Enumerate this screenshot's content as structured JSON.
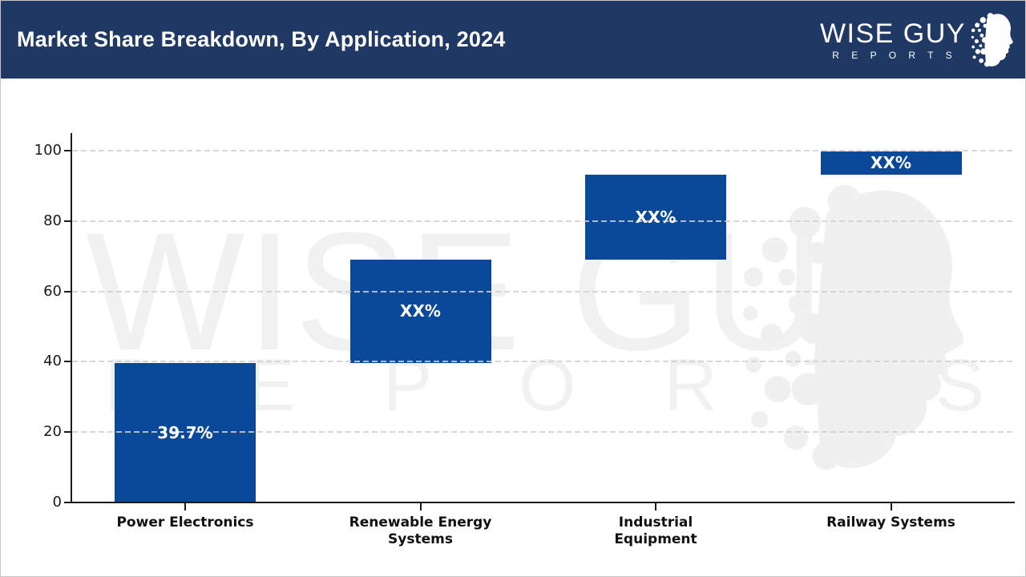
{
  "header": {
    "title": "Market Share Breakdown, By Application, 2024",
    "bg_color": "#1f3864",
    "logo": {
      "wordmark": "WISE GUY",
      "subtext": "R E P O R T S"
    }
  },
  "watermark": {
    "line1": "WISE GUY",
    "line2": "R E P O R T S"
  },
  "chart_data": {
    "type": "bar",
    "subtype": "floating-waterfall",
    "title": "Market Share Breakdown, By Application, 2024",
    "categories": [
      "Power Electronics",
      "Renewable Energy\nSystems",
      "Industrial\nEquipment",
      "Railway Systems"
    ],
    "segments": [
      {
        "category": "Power Electronics",
        "start": 0,
        "end": 39.7,
        "label": "39.7%"
      },
      {
        "category": "Renewable Energy Systems",
        "start": 39.7,
        "end": 69.0,
        "label": "XX%"
      },
      {
        "category": "Industrial Equipment",
        "start": 69.0,
        "end": 93.2,
        "label": "XX%"
      },
      {
        "category": "Railway Systems",
        "start": 93.2,
        "end": 99.8,
        "label": "XX%"
      }
    ],
    "ylim": [
      0,
      100
    ],
    "yticks": [
      0,
      20,
      40,
      60,
      80,
      100
    ],
    "xlabel": "",
    "ylabel": "",
    "grid": "horizontal-dashed",
    "legend": "none",
    "bar_color": "#0a489a",
    "bar_label_color": "#ffffff",
    "axis_color": "#1a1a1a",
    "grid_color": "#d6d6d6"
  }
}
